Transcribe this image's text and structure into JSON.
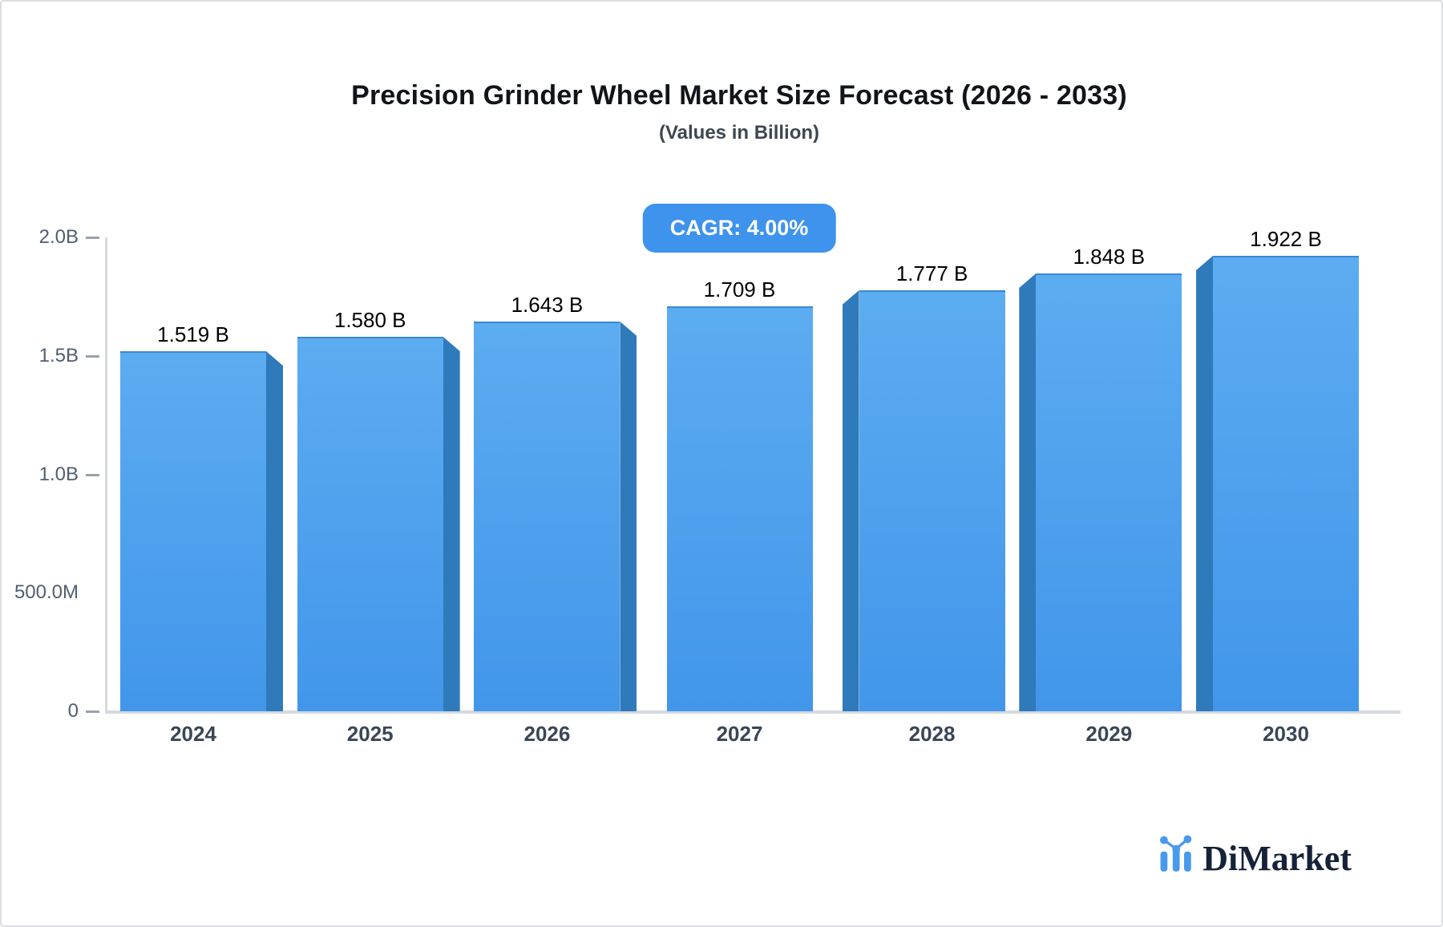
{
  "header": {
    "title": "Precision Grinder Wheel Market Size Forecast (2026 - 2033)",
    "subtitle": "(Values in Billion)",
    "cagr_badge": "CAGR: 4.00%"
  },
  "chart_data": {
    "type": "bar",
    "title": "Precision Grinder Wheel Market Size Forecast (2026 - 2033)",
    "subtitle": "(Values in Billion)",
    "categories": [
      "2024",
      "2025",
      "2026",
      "2027",
      "2028",
      "2029",
      "2030"
    ],
    "values": [
      1.519,
      1.58,
      1.643,
      1.709,
      1.777,
      1.848,
      1.922
    ],
    "value_labels": [
      "1.519 B",
      "1.580 B",
      "1.643 B",
      "1.709 B",
      "1.777 B",
      "1.848 B",
      "1.922 B"
    ],
    "unit": "Billion",
    "cagr_percent": "4.00%",
    "xlabel": "",
    "ylabel": "",
    "ylim": [
      0,
      2.0
    ],
    "grid": false,
    "legend": false,
    "y_axis_ticks": [
      {
        "label": "2.0B",
        "value": 2.0,
        "dash": true
      },
      {
        "label": "1.5B",
        "value": 1.5,
        "dash": true
      },
      {
        "label": "1.0B",
        "value": 1.0,
        "dash": true
      },
      {
        "label": "500.0M",
        "value": 0.5,
        "dash": false
      },
      {
        "label": "0",
        "value": 0.0,
        "dash": true
      }
    ],
    "bar_style": "3d-perspective-center"
  },
  "colors": {
    "bar_face_top": "#5CACF1",
    "bar_face_bottom": "#4296EA",
    "bar_side": "#2F7ABA",
    "bar_top_edge": "#3A87D3",
    "badge_bg": "#3E93EC",
    "badge_text": "#FFFFFF",
    "axis_line": "#D6D9DE",
    "tick_dash": "#9AA1AB",
    "tick_text": "#505E70",
    "year_text": "#3A4656",
    "logo_blue": "#4799EC",
    "logo_text_color": "#152238"
  },
  "footer": {
    "logo_text": "DiMarket",
    "logo_icon": "bar-chart-logo-icon"
  }
}
